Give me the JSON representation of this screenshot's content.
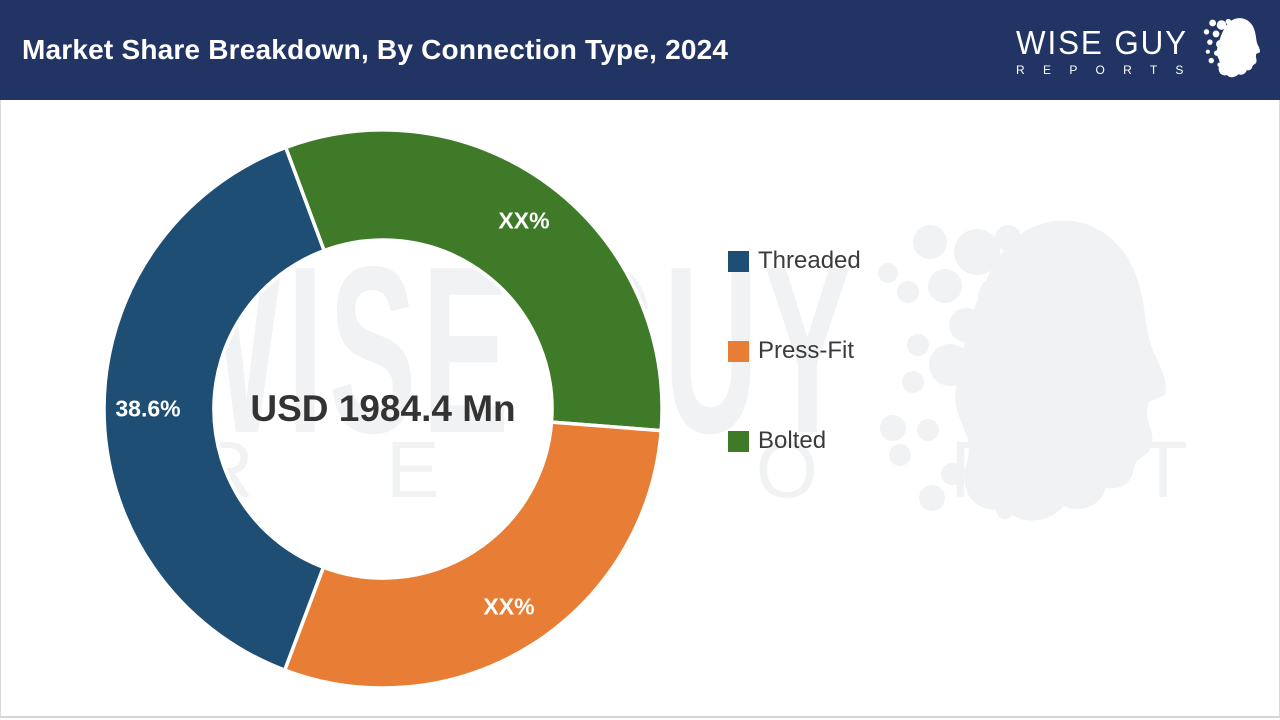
{
  "header": {
    "title": "Market Share Breakdown, By Connection Type, 2024",
    "logo": {
      "name": "WISE GUY",
      "tagline": "R E P O R T S"
    }
  },
  "colors": {
    "header_bg": "#223464",
    "threaded": "#1F4E74",
    "press_fit": "#E87E35",
    "bolted": "#3F7A28",
    "center_text": "#333333",
    "watermark": "#f1f2f4"
  },
  "watermark": {
    "line1": "WISE GUY",
    "line2": "REPORTS"
  },
  "chart_data": {
    "type": "pie",
    "subtype": "donut",
    "title": "Market Share Breakdown, By Connection Type, 2024",
    "center_label": "USD 1984.4 Mn",
    "start_angle_deg": -20.4,
    "slices": [
      {
        "name": "Bolted",
        "value_pct": 31.9,
        "display_label": "XX%",
        "color": "#3F7A28"
      },
      {
        "name": "Press-Fit",
        "value_pct": 29.5,
        "display_label": "XX%",
        "color": "#E87E35"
      },
      {
        "name": "Threaded",
        "value_pct": 38.6,
        "display_label": "38.6%",
        "color": "#1F4E74"
      }
    ],
    "legend_position": "right",
    "legend": [
      {
        "label": "Threaded",
        "color": "#1F4E74"
      },
      {
        "label": "Press-Fit",
        "color": "#E87E35"
      },
      {
        "label": "Bolted",
        "color": "#3F7A28"
      }
    ]
  }
}
